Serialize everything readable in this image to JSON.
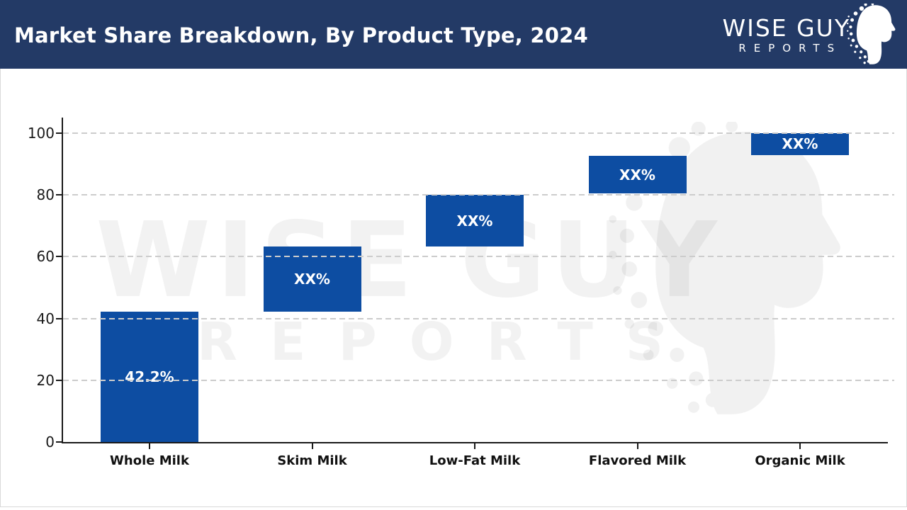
{
  "header": {
    "title": "Market Share Breakdown, By Product Type, 2024",
    "bg_color": "#233a66",
    "logo": {
      "line1": "WISE GUY",
      "line2": "REPORTS"
    }
  },
  "watermark": {
    "line1": "WISE GUY",
    "line2": "REPORTS"
  },
  "chart_data": {
    "type": "bar",
    "variant": "waterfall",
    "title": "Market Share Breakdown, By Product Type, 2024",
    "categories": [
      "Whole Milk",
      "Skim Milk",
      "Low-Fat Milk",
      "Flavored Milk",
      "Organic Milk"
    ],
    "bars": [
      {
        "category": "Whole Milk",
        "start": 0,
        "end": 42.2,
        "label": "42.2%"
      },
      {
        "category": "Skim Milk",
        "start": 42.2,
        "end": 63.2,
        "label": "XX%"
      },
      {
        "category": "Low-Fat Milk",
        "start": 63.2,
        "end": 80.1,
        "label": "XX%"
      },
      {
        "category": "Flavored Milk",
        "start": 80.4,
        "end": 92.6,
        "label": "XX%"
      },
      {
        "category": "Organic Milk",
        "start": 92.9,
        "end": 100,
        "label": "XX%"
      }
    ],
    "yticks": [
      0,
      20,
      40,
      60,
      80,
      100
    ],
    "ylim": [
      0,
      104
    ],
    "xlabel": "",
    "ylabel": "",
    "legend": "none",
    "grid": "horizontal-dashed",
    "grid_color": "#cccccc",
    "bar_color": "#0d4da2",
    "bar_label_color": "#ffffff",
    "axis_color": "#1a1a1a"
  }
}
